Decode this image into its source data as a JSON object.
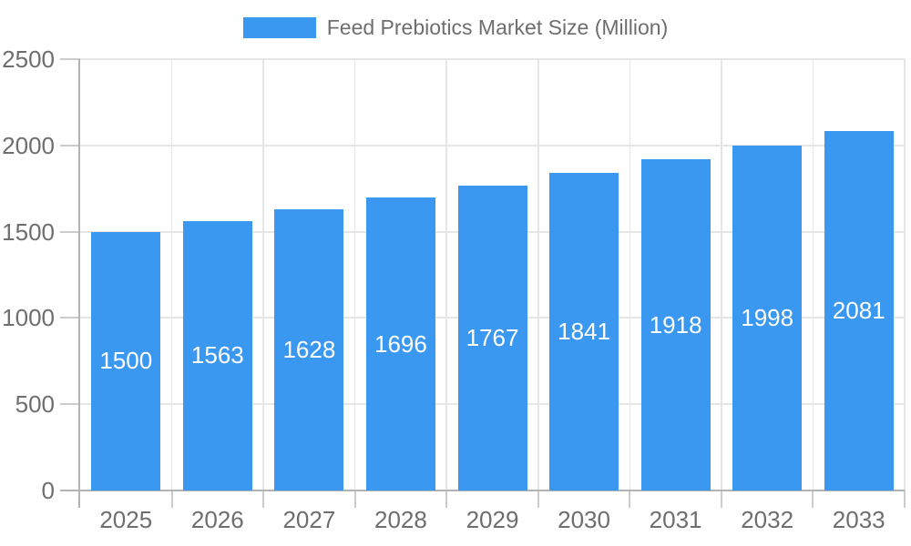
{
  "chart_data": {
    "type": "bar",
    "title": "Feed Prebiotics Market Size (Million)",
    "legend_position": "top",
    "categories": [
      "2025",
      "2026",
      "2027",
      "2028",
      "2029",
      "2030",
      "2031",
      "2032",
      "2033"
    ],
    "series": [
      {
        "name": "Feed Prebiotics Market Size (Million)",
        "values": [
          1500,
          1563,
          1628,
          1696,
          1767,
          1841,
          1918,
          1998,
          2081
        ]
      }
    ],
    "xlabel": "",
    "ylabel": "",
    "ylim": [
      0,
      2500
    ],
    "yticks": [
      0,
      500,
      1000,
      1500,
      2000,
      2500
    ],
    "grid": true,
    "value_labels_inside_bars": true,
    "colors": {
      "bar": "#3b98f0",
      "grid": "#e6e6e6",
      "tick": "#cccccc",
      "axis": "#b3b3b3",
      "label": "#6e6e6e",
      "value": "#ffffff",
      "background": "#ffffff"
    }
  }
}
